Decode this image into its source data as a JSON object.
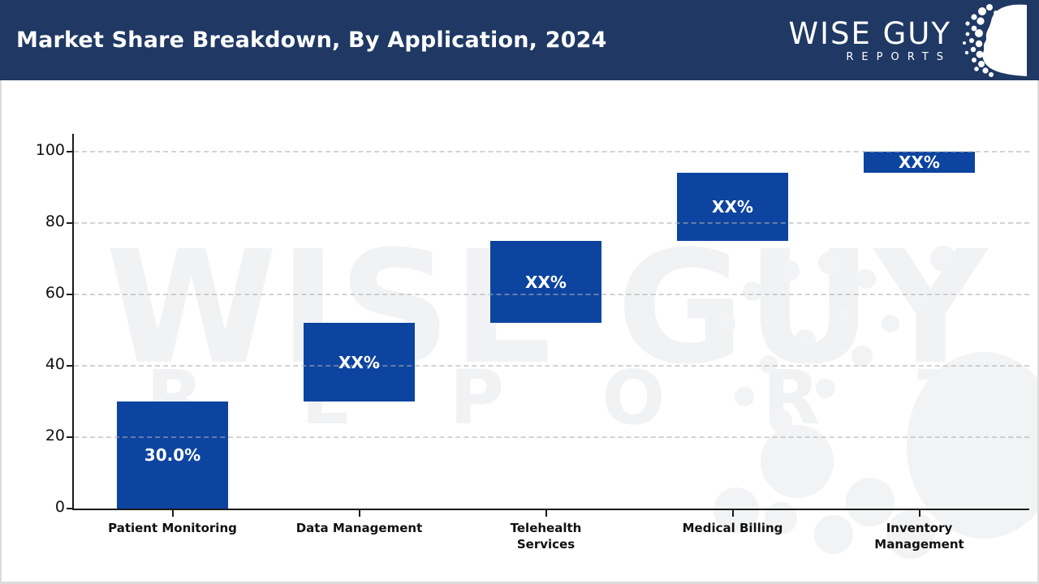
{
  "header": {
    "title": "Market Share Breakdown, By Application, 2024",
    "logo": {
      "line1": "WISE GUY",
      "line2": "REPORTS"
    }
  },
  "watermark": {
    "line1": "WISE GUY",
    "line2": "REPORTS"
  },
  "chart_data": {
    "type": "bar",
    "subtype": "waterfall-floating-bars",
    "title": "Market Share Breakdown, By Application, 2024",
    "categories": [
      "Patient Monitoring",
      "Data Management",
      "Telehealth\nServices",
      "Medical Billing",
      "Inventory\nManagement"
    ],
    "segments": [
      {
        "category": "Patient Monitoring",
        "start": 0,
        "end": 30,
        "label": "30.0%"
      },
      {
        "category": "Data Management",
        "start": 30,
        "end": 52,
        "label": "XX%"
      },
      {
        "category": "Telehealth Services",
        "start": 52,
        "end": 75,
        "label": "XX%"
      },
      {
        "category": "Medical Billing",
        "start": 75,
        "end": 94,
        "label": "XX%"
      },
      {
        "category": "Inventory Management",
        "start": 94,
        "end": 100,
        "label": "XX%"
      }
    ],
    "xlabel": "",
    "ylabel": "",
    "yticks": [
      0,
      20,
      40,
      60,
      80,
      100
    ],
    "ylim": [
      0,
      105
    ],
    "grid": "horizontal-dashed",
    "legend": null
  },
  "colors": {
    "header_bg": "#1f3864",
    "bar": "#0c44a0",
    "bar_label": "#ffffff",
    "axis": "#1a1a1a",
    "watermark": "#f1f2f4",
    "border": "#dcdcdc"
  }
}
